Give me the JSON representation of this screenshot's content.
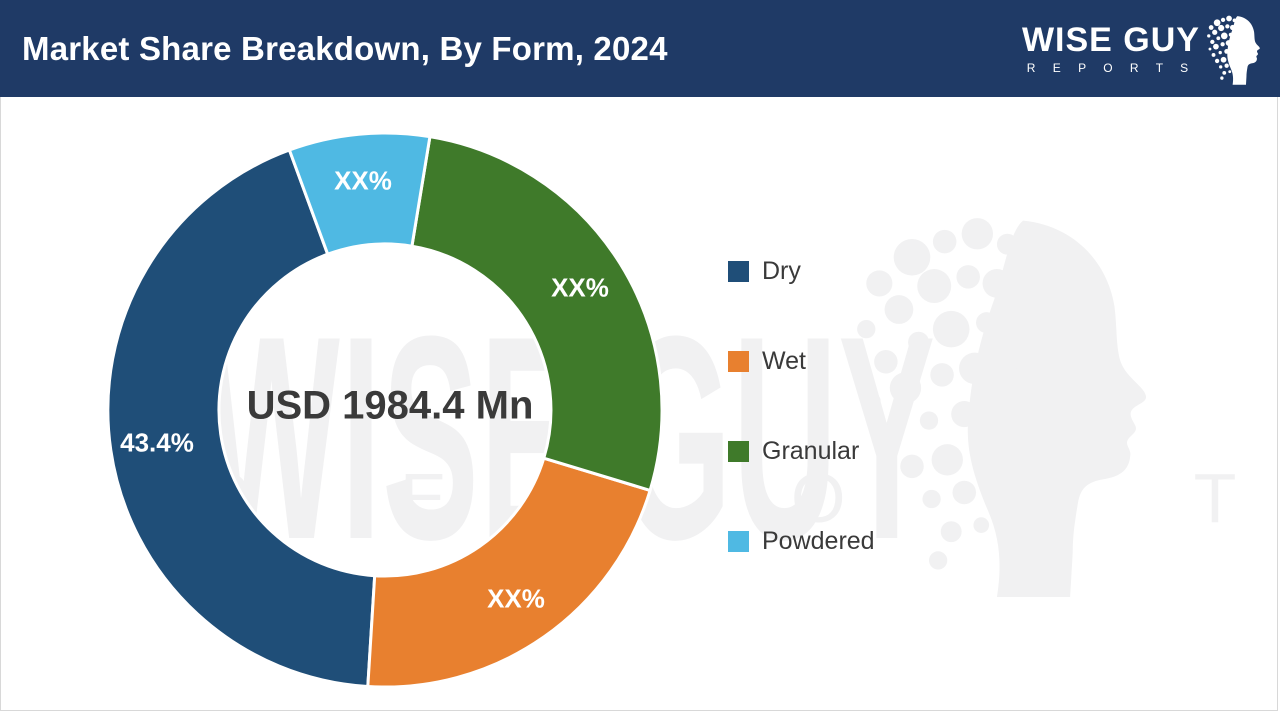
{
  "header": {
    "title": "Market Share Breakdown, By Form, 2024",
    "logo": {
      "brand": "WISE GUY",
      "sub": "R E P O R T S"
    }
  },
  "watermark": {
    "brand": "WISE GUY",
    "sub": "R E P O R T S"
  },
  "chart_data": {
    "type": "pie",
    "subtype": "donut",
    "title": "Market Share Breakdown, By Form, 2024",
    "center_label": "USD 1984.4 Mn",
    "legend_position": "right",
    "start_angle_clockwise_from_top_deg": 339.8,
    "draw_direction": "counterclockwise",
    "slices": [
      {
        "name": "Dry",
        "value_pct": 43.4,
        "label": "43.4%",
        "color": "#1F4E78"
      },
      {
        "name": "Wet",
        "value_pct": 21.3,
        "label": "XX%",
        "color": "#E8802F"
      },
      {
        "name": "Granular",
        "value_pct": 27.1,
        "label": "XX%",
        "color": "#3F7A2A"
      },
      {
        "name": "Powdered",
        "value_pct": 8.2,
        "label": "XX%",
        "color": "#4FB9E3"
      }
    ]
  },
  "colors": {
    "header_bar": "#1F3A66",
    "body_text": "#3A3A3A",
    "watermark_gray": "#F1F1F2",
    "border_gray": "#D8D8D8"
  }
}
